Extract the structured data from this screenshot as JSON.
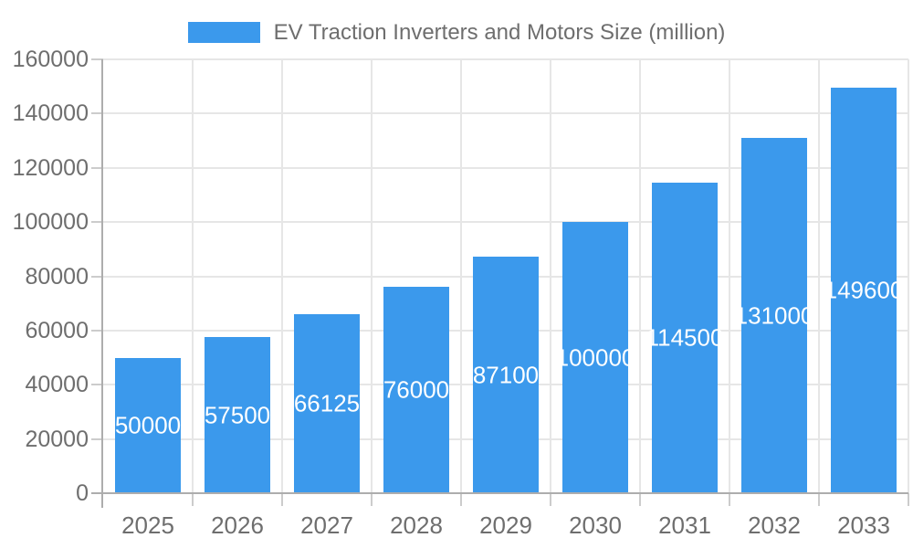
{
  "chart_data": {
    "type": "bar",
    "title": "EV Traction Inverters and Motors Size (million)",
    "legend_position": "top",
    "categories": [
      "2025",
      "2026",
      "2027",
      "2028",
      "2029",
      "2030",
      "2031",
      "2032",
      "2033"
    ],
    "series": [
      {
        "name": "EV Traction Inverters and Motors Size (million)",
        "values": [
          50000,
          57500,
          66125,
          76000,
          87100,
          100000,
          114500,
          131000,
          149600
        ]
      }
    ],
    "bar_labels": [
      "50000",
      "57500",
      "66125",
      "76000",
      "87100",
      "100000",
      "114500",
      "131000",
      "149600"
    ],
    "xlabel": "",
    "ylabel": "",
    "ylim": [
      0,
      160000
    ],
    "ytick_interval": 20000,
    "ytick_labels": [
      "0",
      "20000",
      "40000",
      "60000",
      "80000",
      "100000",
      "120000",
      "140000",
      "160000"
    ],
    "grid": true,
    "colors": {
      "bar": "#3B99EC",
      "bar_label": "#FFFFFF",
      "title_text": "#6E6E6E",
      "axis_text": "#6E6E6E",
      "gridline": "#E6E6E6",
      "axis_line": "#ADADAD",
      "tick_mark": "#CCCCCC",
      "background": "#FFFFFF"
    }
  }
}
